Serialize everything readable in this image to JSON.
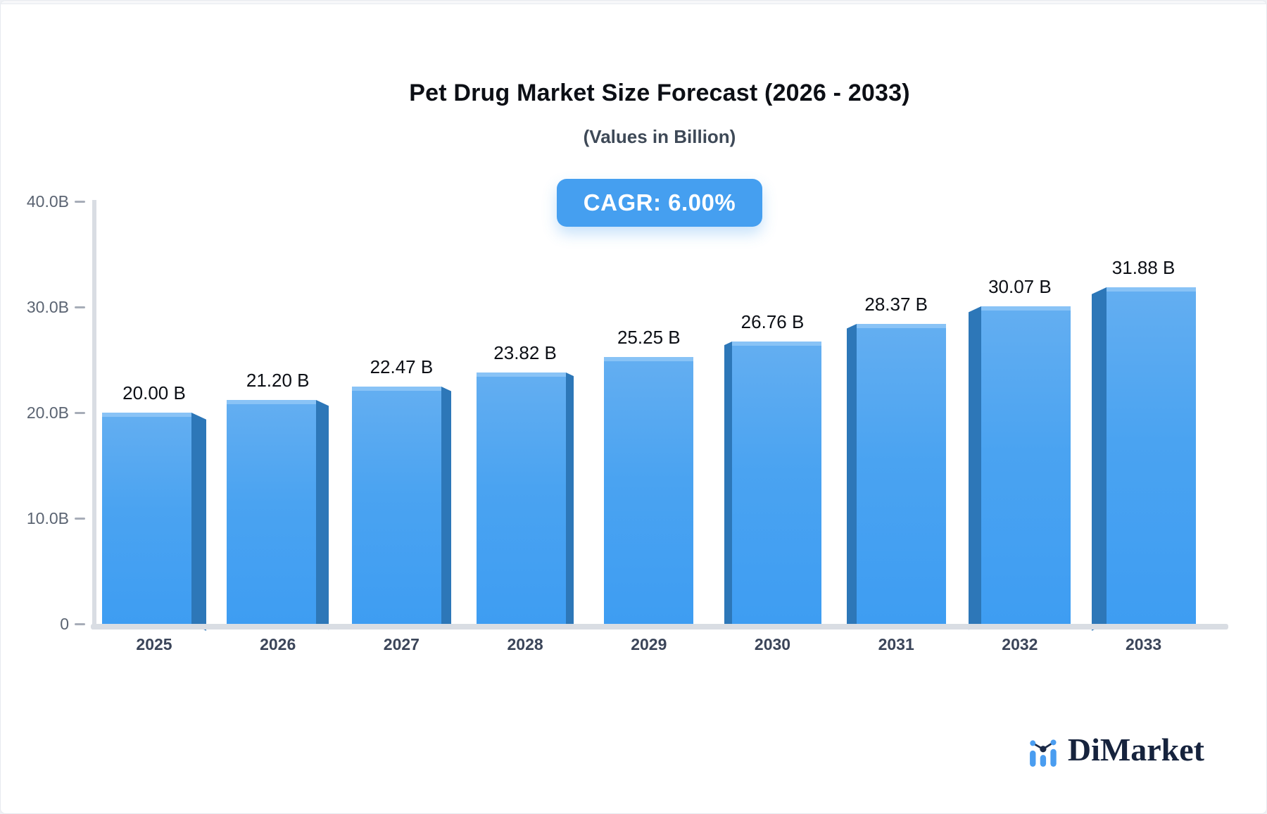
{
  "header": {
    "title": "Pet Drug Market Size Forecast (2026 - 2033)",
    "subtitle": "(Values in Billion)"
  },
  "badge": {
    "label": "CAGR: 6.00%"
  },
  "watermark": {
    "brand": "DiMarket"
  },
  "chart_data": {
    "type": "bar",
    "title": "Pet Drug Market Size Forecast (2026 - 2033)",
    "subtitle": "(Values in Billion)",
    "cagr_label": "CAGR: 6.00%",
    "categories": [
      "2025",
      "2026",
      "2027",
      "2028",
      "2029",
      "2030",
      "2031",
      "2032",
      "2033"
    ],
    "values": [
      20.0,
      21.2,
      22.47,
      23.82,
      25.25,
      26.76,
      28.37,
      30.07,
      31.88
    ],
    "value_labels": [
      "20.00 B",
      "21.20 B",
      "22.47 B",
      "23.82 B",
      "25.25 B",
      "26.76 B",
      "28.37 B",
      "30.07 B",
      "31.88 B"
    ],
    "xlabel": "",
    "ylabel": "",
    "ylim": [
      0,
      40
    ],
    "yticks": [
      {
        "value": 0,
        "label": "0"
      },
      {
        "value": 10,
        "label": "10.0B"
      },
      {
        "value": 20,
        "label": "20.0B"
      },
      {
        "value": 30,
        "label": "30.0B"
      },
      {
        "value": 40,
        "label": "40.0B"
      }
    ],
    "grid": false,
    "legend": "none",
    "bar_style": "3d-perspective",
    "colors": {
      "bar_face_top": "#63aef1",
      "bar_face_bottom": "#3e9df2",
      "bar_cap_highlight": "#89c3f6",
      "bar_side": "#2d77b8",
      "badge_bg": "#459ff0",
      "badge_text": "#ffffff",
      "axis": "#d9dde3",
      "tick_text": "#5b6472",
      "x_tick_text": "#3b4559",
      "value_text": "#0c0f15",
      "logo_navy": "#16233d",
      "logo_blue": "#4a9df0"
    }
  }
}
